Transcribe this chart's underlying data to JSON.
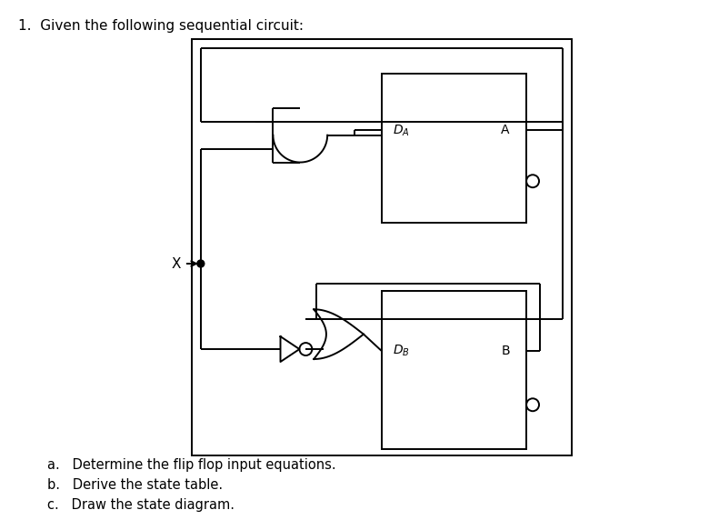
{
  "title": "1.  Given the following sequential circuit:",
  "questions": [
    "a.   Determine the flip flop input equations.",
    "b.   Derive the state table.",
    "c.   Draw the state diagram."
  ],
  "bg_color": "#ffffff",
  "lc": "#000000"
}
